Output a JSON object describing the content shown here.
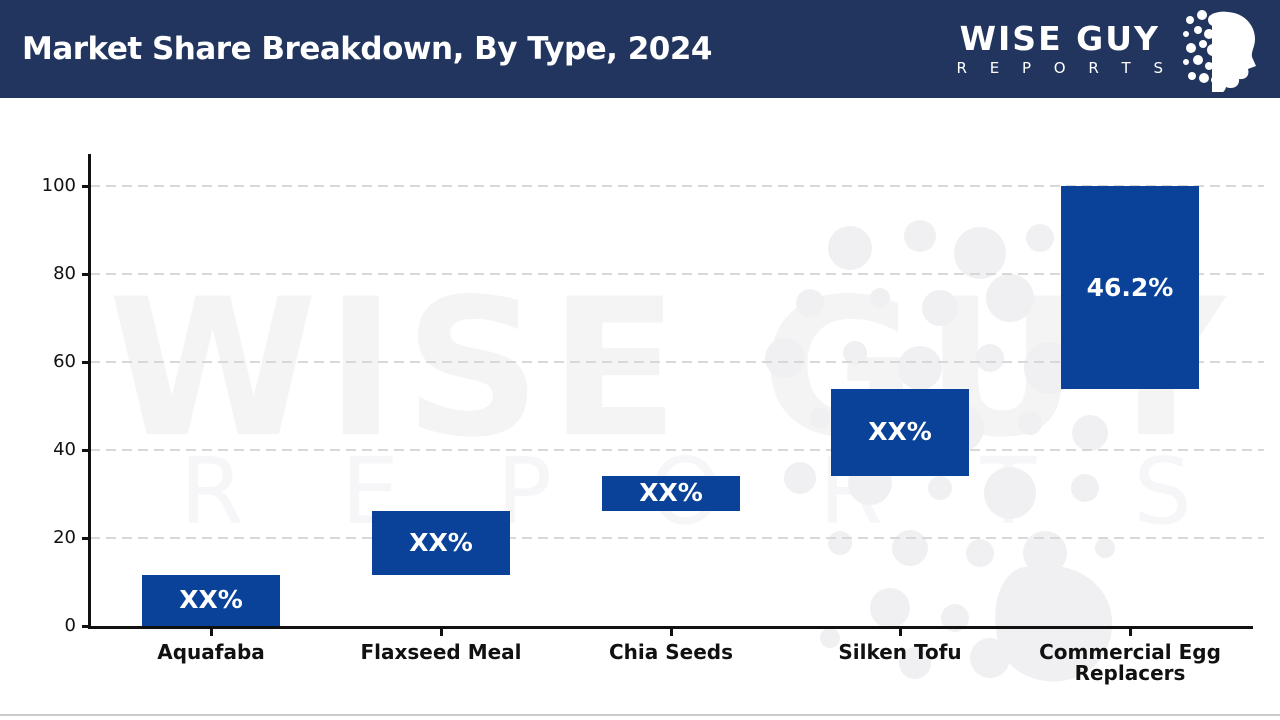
{
  "header": {
    "title": "Market Share Breakdown, By Type, 2024",
    "bg_color": "#22355e",
    "logo": {
      "line1": "WISE GUY",
      "line2": "R E P O R T S"
    }
  },
  "watermark": {
    "line1": "WISE GUY",
    "line2": "R E P O R T S"
  },
  "icons": {
    "logo_face": "dotted-head-profile",
    "watermark_face": "dotted-head-profile"
  },
  "colors": {
    "header_bg": "#22355e",
    "bar_fill": "#0a4299",
    "bar_label_text": "#ffffff",
    "grid": "#d8d8d8",
    "axis": "#111111",
    "watermark": "#ededf1"
  },
  "chart_data": {
    "type": "bar",
    "subtype": "floating-waterfall",
    "title": "Market Share Breakdown, By Type, 2024",
    "xlabel": "",
    "ylabel": "",
    "categories": [
      "Aquafaba",
      "Flaxseed Meal",
      "Chia Seeds",
      "Silken Tofu",
      "Commercial Egg Replacers"
    ],
    "segments": [
      {
        "start": 0,
        "end": 11.6,
        "value_pct": 11.6,
        "label": "XX%"
      },
      {
        "start": 11.6,
        "end": 26.2,
        "value_pct": 14.6,
        "label": "XX%"
      },
      {
        "start": 26.2,
        "end": 34.2,
        "value_pct": 8.0,
        "label": "XX%"
      },
      {
        "start": 34.2,
        "end": 53.8,
        "value_pct": 19.6,
        "label": "XX%"
      },
      {
        "start": 53.8,
        "end": 100,
        "value_pct": 46.2,
        "label": "46.2%"
      }
    ],
    "yticks": [
      0,
      20,
      40,
      60,
      80,
      100
    ],
    "ylim": [
      0,
      105
    ],
    "grid": "horizontal-dashed",
    "legend": "none",
    "note": "Only the last bar shows a numeric value (46.2%); other bars are masked as XX%"
  }
}
